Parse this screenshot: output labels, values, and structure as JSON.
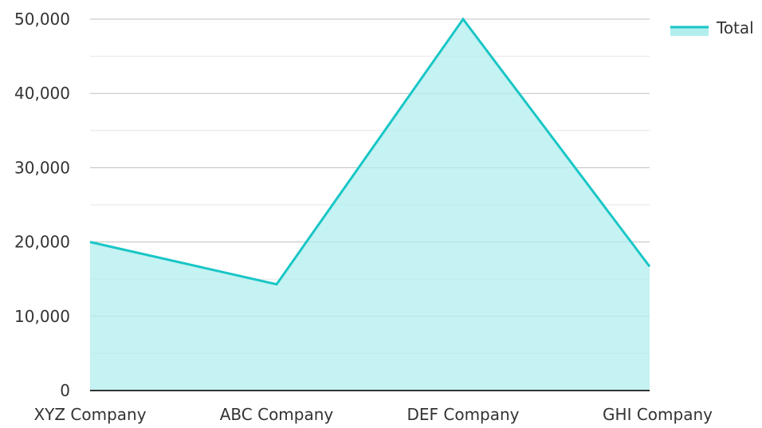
{
  "chart_data": {
    "type": "area",
    "categories": [
      "XYZ Company",
      "ABC Company",
      "DEF Company",
      "GHI Company"
    ],
    "series": [
      {
        "name": "Total",
        "values": [
          20000,
          14300,
          50000,
          16700
        ]
      }
    ],
    "ylim": [
      0,
      50000
    ],
    "yticks": [
      "0",
      "10,000",
      "20,000",
      "30,000",
      "40,000",
      "50,000"
    ],
    "grid": true,
    "legend": "top-right",
    "colors": {
      "line": "#19c6c6",
      "fill": "#b2eeee",
      "grid_major": "#bfbfbf",
      "grid_minor": "#e6e6e6",
      "axis": "#333333"
    }
  }
}
